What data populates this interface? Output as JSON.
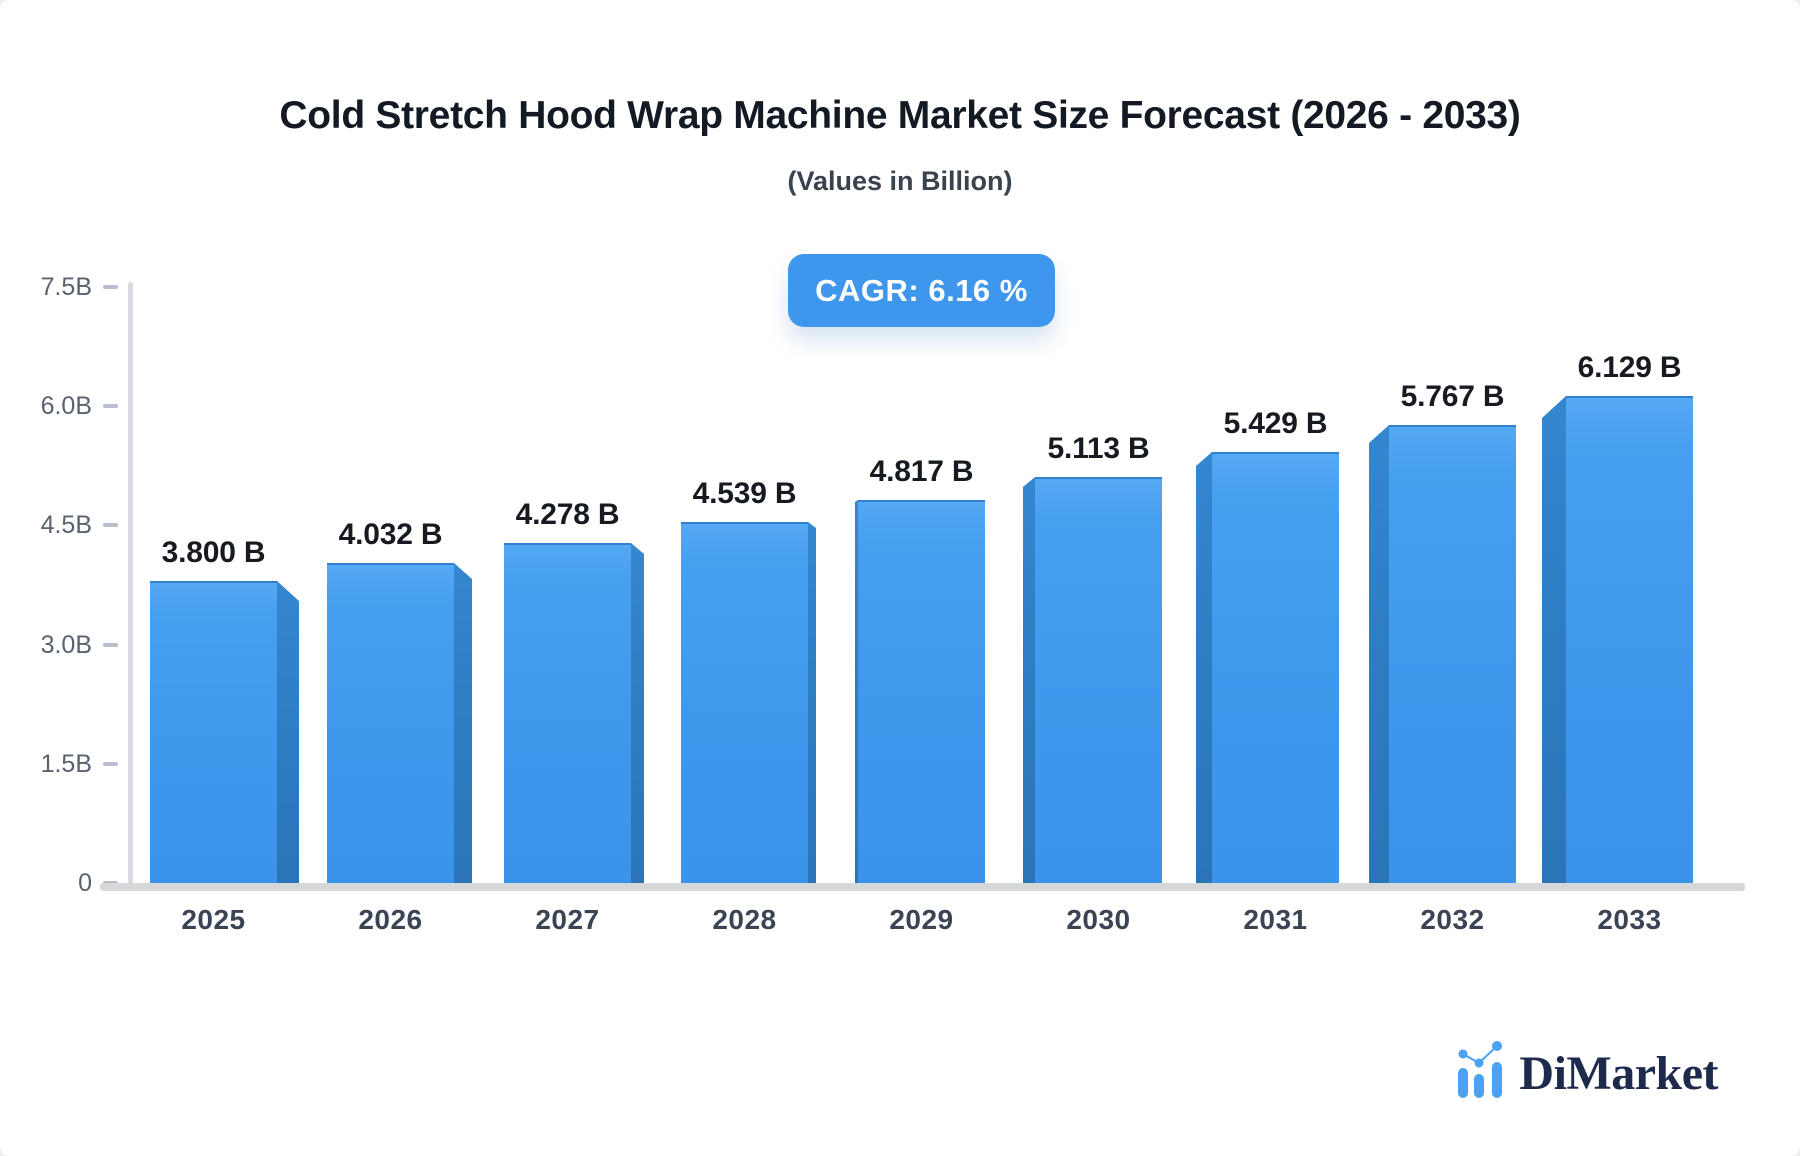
{
  "header": {
    "title": "Cold Stretch Hood Wrap Machine Market Size Forecast (2026 - 2033)",
    "subtitle": "(Values in Billion)",
    "cagr_badge": "CAGR: 6.16 %"
  },
  "chart_data": {
    "type": "bar",
    "title": "Cold Stretch Hood Wrap Machine Market Size Forecast (2026 - 2033)",
    "subtitle": "(Values in Billion)",
    "unit": "Billion",
    "cagr_percent": 6.16,
    "categories": [
      "2025",
      "2026",
      "2027",
      "2028",
      "2029",
      "2030",
      "2031",
      "2032",
      "2033"
    ],
    "values": [
      3.8,
      4.032,
      4.278,
      4.539,
      4.817,
      5.113,
      5.429,
      5.767,
      6.129
    ],
    "value_labels": [
      "3.800 B",
      "4.032 B",
      "4.278 B",
      "4.539 B",
      "4.817 B",
      "5.113 B",
      "5.429 B",
      "5.767 B",
      "6.129 B"
    ],
    "y_ticks": [
      {
        "label": "7.5B",
        "value": 7.5
      },
      {
        "label": "6.0B",
        "value": 6.0
      },
      {
        "label": "4.5B",
        "value": 4.5
      },
      {
        "label": "3.0B",
        "value": 3.0
      },
      {
        "label": "1.5B",
        "value": 1.5
      },
      {
        "label": "0",
        "value": 0
      }
    ],
    "ylim": [
      0,
      7.5
    ],
    "grid": false,
    "legend": false,
    "style_3d": true
  },
  "footer": {
    "logo_text": "DiMarket"
  },
  "colors": {
    "bar_front": "#429AEE",
    "bar_side": "#2E7EC5",
    "badge_bg": "#3E97EC",
    "axis_line": "#D8DBDF",
    "tick": "#B8BFCA",
    "baseline": "#D5D7D9",
    "title_text": "#141A23",
    "axis_text": "#59626F",
    "category_text": "#3A4454",
    "logo_blue": "#4BA1F3",
    "logo_navy": "#1D2A4B"
  }
}
